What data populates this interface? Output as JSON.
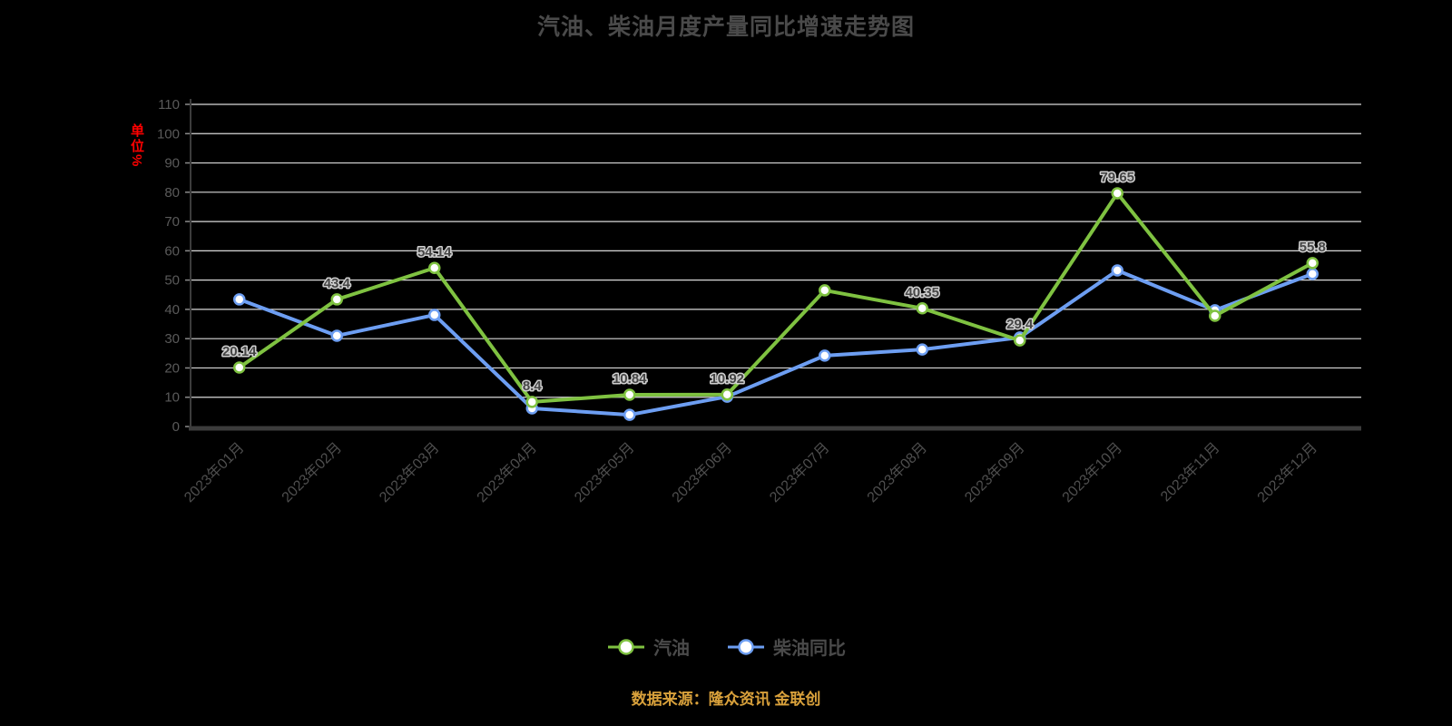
{
  "title": "汽油、柴油月度产量同比增速走势图",
  "y_axis_unit": "单位%",
  "footer_note": "数据来源：隆众资讯 金联创",
  "colors": {
    "background": "#000000",
    "grid_line": "#d9d9d9",
    "axis_line": "#3c3c3c",
    "text": "#4a4a4a",
    "y_label_text": "#5a5a5a",
    "x_label_text": "#4e4e4e",
    "note_orange": "#d9a13b",
    "y_unit_red": "#ff0000",
    "series_green": "#7fc241",
    "series_blue": "#6d9ef2",
    "marker_fill": "#ffffff"
  },
  "legend": [
    {
      "name": "汽油",
      "color": "#7fc241"
    },
    {
      "name": "柴油同比",
      "color": "#6d9ef2"
    }
  ],
  "chart_data": {
    "type": "line",
    "title": "汽油、柴油月度产量同比增速走势图",
    "categories": [
      "2023年01月",
      "2023年02月",
      "2023年03月",
      "2023年04月",
      "2023年05月",
      "2023年06月",
      "2023年07月",
      "2023年08月",
      "2023年09月",
      "2023年10月",
      "2023年11月",
      "2023年12月"
    ],
    "series": [
      {
        "name": "汽油",
        "color": "#7fc241",
        "values": [
          20.14,
          43.4,
          54.14,
          8.4,
          10.84,
          10.92,
          46.5,
          40.35,
          29.4,
          79.65,
          37.8,
          55.8
        ],
        "labels": [
          "20.14",
          "43.4",
          "54.14",
          "8.4",
          "10.84",
          "10.92",
          null,
          "40.35",
          "29.4",
          "79.65",
          null,
          "55.8"
        ]
      },
      {
        "name": "柴油同比",
        "color": "#6d9ef2",
        "values": [
          43.4,
          31.0,
          38.1,
          6.2,
          4.0,
          10.2,
          24.2,
          26.3,
          30.4,
          53.3,
          39.7,
          52.1
        ],
        "labels": []
      }
    ],
    "xlabel": "",
    "ylabel": "单位%",
    "ylim": [
      0,
      110
    ],
    "y_ticks": [
      0,
      10,
      20,
      30,
      40,
      50,
      60,
      70,
      80,
      90,
      100,
      110
    ],
    "grid": true,
    "legend_position": "bottom",
    "marker": "white-filled-circle"
  }
}
